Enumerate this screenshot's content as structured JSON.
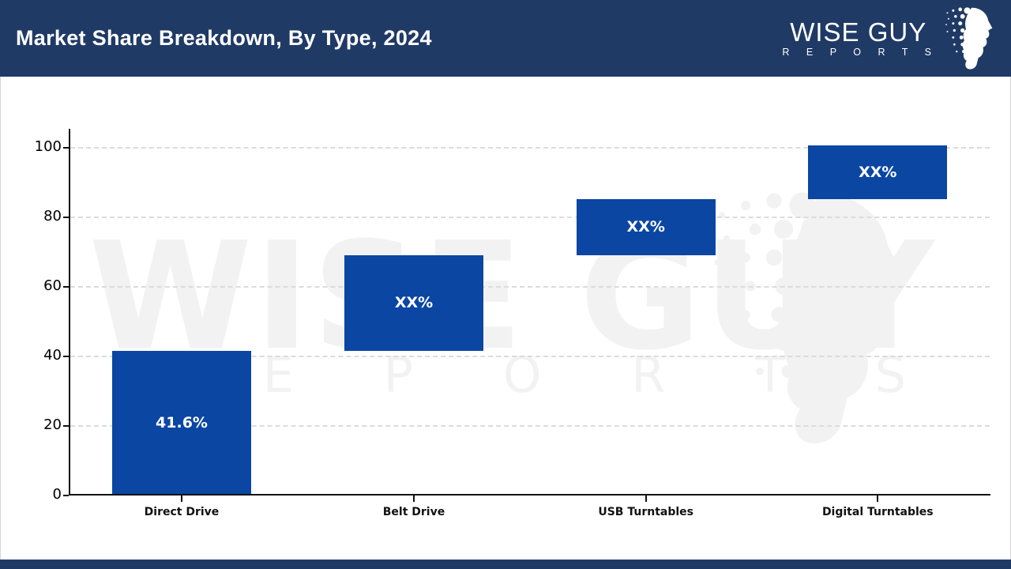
{
  "header": {
    "title": "Market Share Breakdown, By Type, 2024",
    "logo": {
      "name": "WISE GUY",
      "sub": "R E P O R T S",
      "head_icon": "head-profile-dots-icon"
    }
  },
  "watermark": {
    "line1": "WISE GUY",
    "line2": "R E P O R T S",
    "head_icon": "head-profile-dots-icon"
  },
  "colors": {
    "brand_navy": "#203a66",
    "bar_blue": "#0b46a3",
    "watermark_gray": "#f2f2f3",
    "gridline_gray": "#dcdcdc"
  },
  "chart_data": {
    "type": "bar",
    "subtype": "floating-waterfall",
    "title": "Market Share Breakdown, By Type, 2024",
    "categories": [
      "Direct Drive",
      "Belt Drive",
      "USB Turntables",
      "Digital Turntables"
    ],
    "series": [
      {
        "name": "Market Share",
        "segments": [
          {
            "category": "Direct Drive",
            "from": 0,
            "to": 41.6,
            "label": "41.6%"
          },
          {
            "category": "Belt Drive",
            "from": 41.6,
            "to": 69.2,
            "label": "XX%"
          },
          {
            "category": "USB Turntables",
            "from": 69.2,
            "to": 85.2,
            "label": "XX%"
          },
          {
            "category": "Digital Turntables",
            "from": 85.2,
            "to": 100.6,
            "label": "XX%"
          }
        ]
      }
    ],
    "yticks": [
      0,
      20,
      40,
      60,
      80,
      100
    ],
    "ylim": [
      0,
      105.5
    ],
    "xlabel": "",
    "ylabel": "",
    "grid": "horizontal-dashed",
    "legend": false,
    "bar_color": "#0b46a3",
    "value_label_color": "#ffffff"
  }
}
